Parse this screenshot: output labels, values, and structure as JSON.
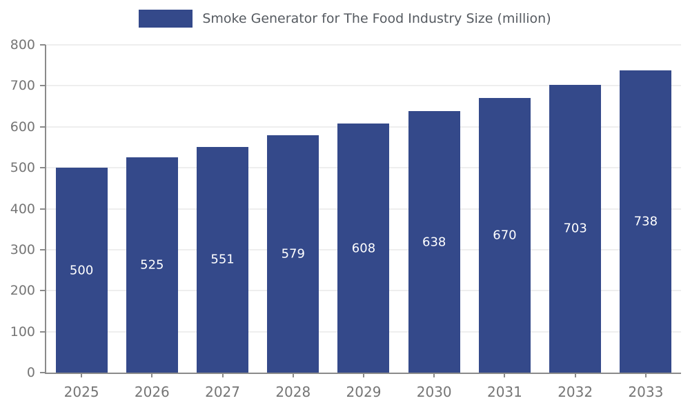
{
  "chart_data": {
    "type": "bar",
    "title": "Smoke Generator for The Food Industry Size (million)",
    "categories": [
      "2025",
      "2026",
      "2027",
      "2028",
      "2029",
      "2030",
      "2031",
      "2032",
      "2033"
    ],
    "values": [
      500,
      525,
      551,
      579,
      608,
      638,
      670,
      703,
      738
    ],
    "xlabel": "",
    "ylabel": "",
    "ylim": [
      0,
      800
    ],
    "yticks": [
      0,
      100,
      200,
      300,
      400,
      500,
      600,
      700,
      800
    ],
    "grid": "horizontal",
    "legend_position": "top-center",
    "bar_color": "#34498a",
    "label_color": "#ffffff",
    "tick_color": "#757575",
    "grid_color": "#dcdcdc"
  }
}
